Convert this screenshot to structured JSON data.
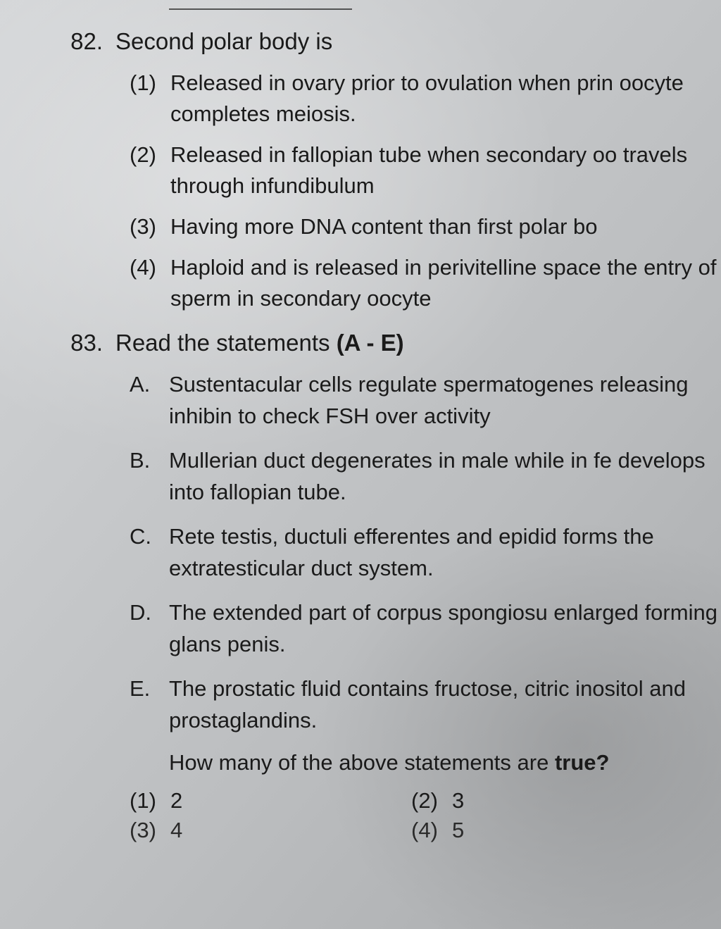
{
  "colors": {
    "text": "#1a1a1a",
    "paper_light": "#d4d6d8",
    "paper_dark": "#a8aaac",
    "rule": "#2a2a2a"
  },
  "typography": {
    "family": "Arial, Helvetica, sans-serif",
    "stem_size_pt": 25,
    "option_size_pt": 23,
    "line_height": 1.42
  },
  "q82": {
    "number": "82.",
    "stem": "Second polar body is",
    "options": [
      {
        "mark": "(1)",
        "text": "Released in ovary prior to ovulation when prin oocyte completes meiosis."
      },
      {
        "mark": "(2)",
        "text": "Released in fallopian tube when secondary oo travels through infundibulum"
      },
      {
        "mark": "(3)",
        "text": "Having more DNA content than first polar bo"
      },
      {
        "mark": "(4)",
        "text": "Haploid and is released in perivitelline space the entry of sperm in secondary oocyte"
      }
    ]
  },
  "q83": {
    "number": "83.",
    "stem_pre": "Read the statements ",
    "stem_bold": "(A - E)",
    "statements": [
      {
        "mark": "A.",
        "text": "Sustentacular cells regulate spermatogenes releasing inhibin to check FSH over activity"
      },
      {
        "mark": "B.",
        "text": "Mullerian duct degenerates in male while in fe develops into fallopian tube."
      },
      {
        "mark": "C.",
        "text": "Rete testis, ductuli efferentes and epidid forms the extratesticular duct system."
      },
      {
        "mark": "D.",
        "text": "The extended part of corpus spongiosu enlarged forming glans penis."
      },
      {
        "mark": "E.",
        "text": "The prostatic fluid contains fructose, citric inositol and prostaglandins."
      }
    ],
    "followup_pre": "How many of the above statements are ",
    "followup_bold": "true?",
    "answers_row1": [
      {
        "mark": "(1)",
        "text": "2"
      },
      {
        "mark": "(2)",
        "text": "3"
      }
    ],
    "answers_row2": [
      {
        "mark": "(3)",
        "text": "4"
      },
      {
        "mark": "(4)",
        "text": "5"
      }
    ]
  }
}
